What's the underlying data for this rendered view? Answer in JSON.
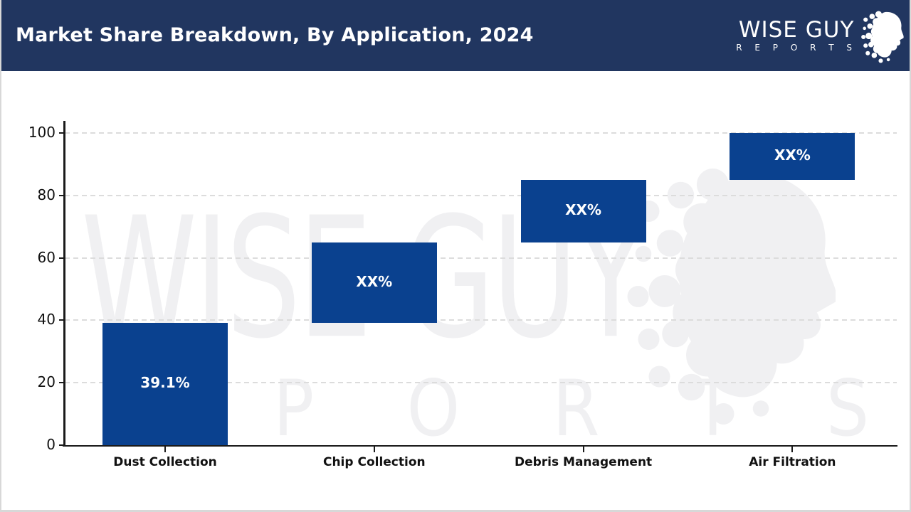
{
  "header": {
    "title": "Market Share Breakdown, By Application, 2024",
    "logo": {
      "wordmark": "WISE GUY",
      "subtitle": "R E P O R T S"
    }
  },
  "watermark": {
    "wordmark": "WISE GUY",
    "subtitle": "P O R T S"
  },
  "colors": {
    "header-bg": "#213660",
    "bar-fill": "#0a418f",
    "bar-label": "#ffffff",
    "grid-line": "#dcdcdc",
    "axis-line": "#1a1a1a",
    "tick-label": "#111111",
    "title-text": "#ffffff",
    "watermark": "#f0f0f2",
    "page-border": "#d8d8d8"
  },
  "chart_data": {
    "type": "bar",
    "subtype": "floating-waterfall",
    "title": "Market Share Breakdown, By Application, 2024",
    "categories": [
      "Dust Collection",
      "Chip Collection",
      "Debris Management",
      "Air Filtration"
    ],
    "bars": [
      {
        "category": "Dust Collection",
        "start": 0,
        "end": 39.1,
        "label": "39.1%"
      },
      {
        "category": "Chip Collection",
        "start": 39.1,
        "end": 65,
        "label": "XX%"
      },
      {
        "category": "Debris Management",
        "start": 65,
        "end": 85,
        "label": "XX%"
      },
      {
        "category": "Air Filtration",
        "start": 85,
        "end": 100,
        "label": "XX%"
      }
    ],
    "yticks": [
      0,
      20,
      40,
      60,
      80,
      100
    ],
    "ylim": [
      0,
      105
    ],
    "xlabel": "",
    "ylabel": "",
    "grid": "dashed-horizontal",
    "legend": "none"
  }
}
